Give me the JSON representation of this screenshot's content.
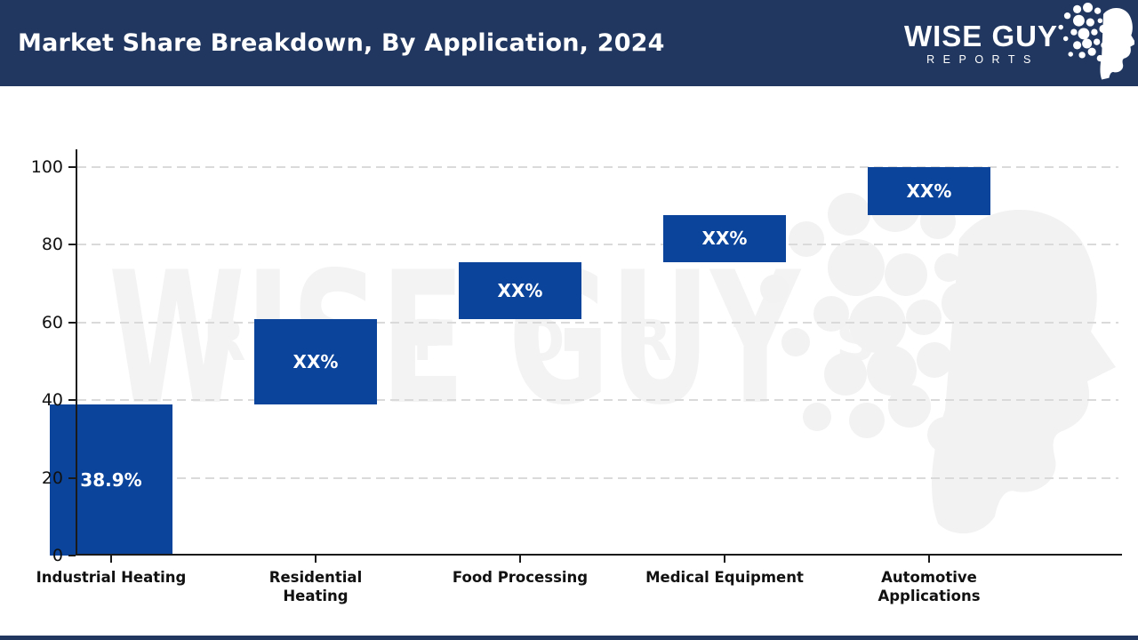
{
  "header": {
    "title": "Market Share Breakdown, By Application, 2024",
    "logo": {
      "line1": "WISE GUY",
      "line2": "REPORTS"
    }
  },
  "watermark": {
    "line1": "WISE GUY",
    "line2": "REPORTS"
  },
  "chart_data": {
    "type": "bar",
    "subtype": "waterfall",
    "title": "Market Share Breakdown, By Application, 2024",
    "categories": [
      "Industrial Heating",
      "Residential\nHeating",
      "Food Processing",
      "Medical Equipment",
      "Automotive\nApplications"
    ],
    "segments": [
      {
        "category": "Industrial Heating",
        "start": 0,
        "end": 38.9,
        "label": "38.9%"
      },
      {
        "category": "Residential Heating",
        "start": 38.9,
        "end": 60.8,
        "label": "XX%"
      },
      {
        "category": "Food Processing",
        "start": 60.8,
        "end": 75.5,
        "label": "XX%"
      },
      {
        "category": "Medical Equipment",
        "start": 75.5,
        "end": 87.6,
        "label": "XX%"
      },
      {
        "category": "Automotive Applications",
        "start": 87.6,
        "end": 100,
        "label": "XX%"
      }
    ],
    "xlabel": "",
    "ylabel": "",
    "yticks": [
      0,
      20,
      40,
      60,
      80,
      100
    ],
    "ylim": [
      0,
      104.5
    ],
    "grid": "horizontal-dashed",
    "legend": "none",
    "colors": {
      "bar": "#0a449b",
      "bar_label": "#ffffff",
      "banner": "#21375f",
      "gridline": "#dadada",
      "axis": "#1a1a1a",
      "watermark": "#f2f2f2"
    }
  }
}
